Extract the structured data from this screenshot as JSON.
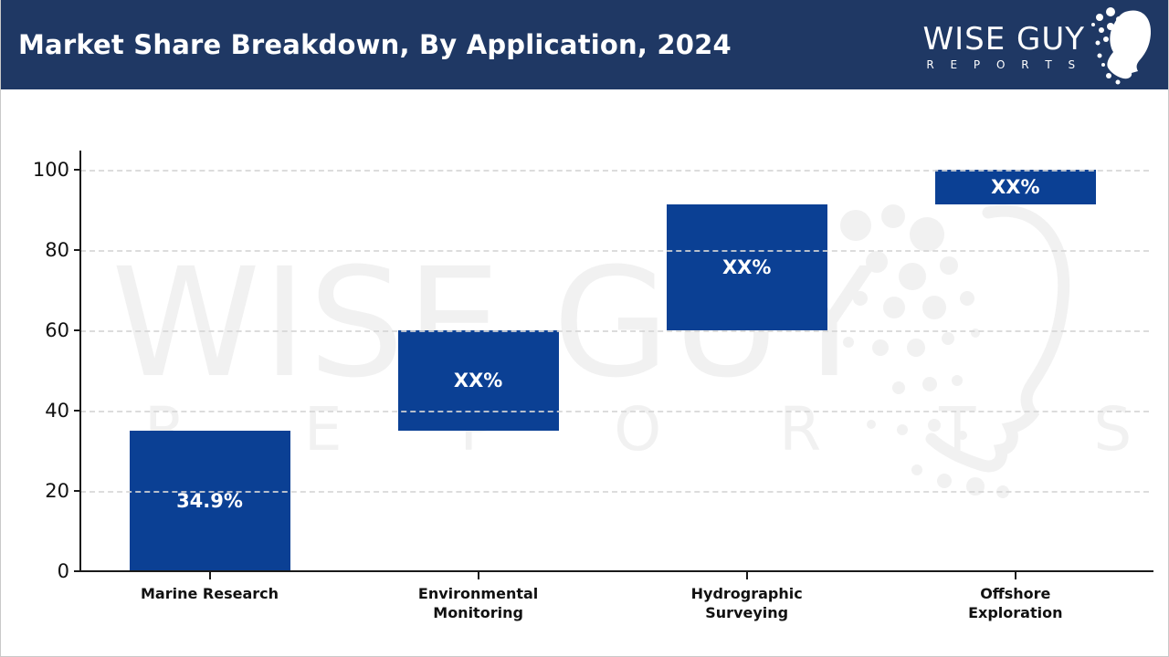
{
  "header": {
    "title": "Market Share Breakdown, By Application, 2024",
    "logo": {
      "name": "WISE GUY",
      "sub": "R E P O R T S"
    }
  },
  "watermark": {
    "line1": "WISE GUY",
    "line2": "R E P O R T S"
  },
  "colors": {
    "header_bg": "#1f3864",
    "bar": "#0b4094",
    "grid": "#d6d6d6",
    "axis": "#1a1a1a",
    "value_label": "#ffffff",
    "watermark": "#f1f1f1"
  },
  "chart_data": {
    "type": "bar",
    "subtype": "waterfall",
    "title": "Market Share Breakdown, By Application, 2024",
    "categories": [
      "Marine Research",
      "Environmental Monitoring",
      "Hydrographic Surveying",
      "Offshore Exploration"
    ],
    "segments": [
      {
        "category": "Marine Research",
        "start": 0,
        "end": 34.9,
        "label": "34.9%"
      },
      {
        "category": "Environmental Monitoring",
        "start": 34.9,
        "end": 60,
        "label": "XX%"
      },
      {
        "category": "Hydrographic Surveying",
        "start": 60,
        "end": 91.4,
        "label": "XX%"
      },
      {
        "category": "Offshore Exploration",
        "start": 91.4,
        "end": 100,
        "label": "XX%"
      }
    ],
    "yticks": [
      0,
      20,
      40,
      60,
      80,
      100
    ],
    "ylim": [
      0,
      105
    ],
    "xlabel": "",
    "ylabel": "",
    "grid": "horizontal-dashed",
    "legend": "none"
  }
}
